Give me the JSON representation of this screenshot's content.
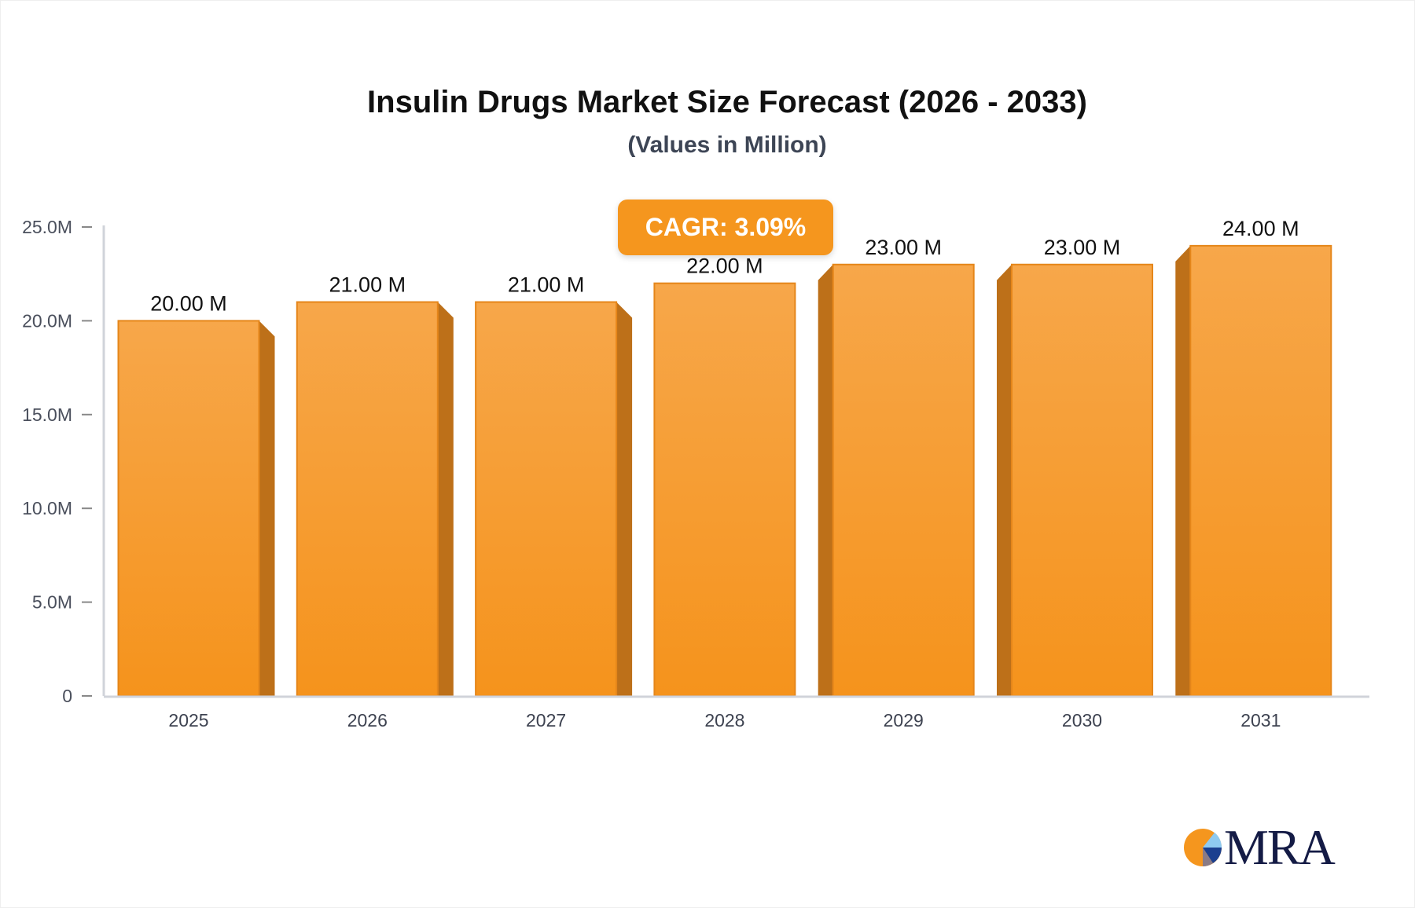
{
  "chart_data": {
    "type": "bar",
    "title": "Insulin Drugs Market Size Forecast (2026 - 2033)",
    "subtitle": "(Values in Million)",
    "categories": [
      "2025",
      "2026",
      "2027",
      "2028",
      "2029",
      "2030",
      "2031"
    ],
    "values": [
      20,
      21,
      21,
      22,
      23,
      23,
      24
    ],
    "data_labels": [
      "20.00 M",
      "21.00 M",
      "21.00 M",
      "22.00 M",
      "23.00 M",
      "23.00 M",
      "24.00 M"
    ],
    "yticks": [
      0,
      5,
      10,
      15,
      20,
      25
    ],
    "ytick_labels": [
      "0",
      "5.0M",
      "10.0M",
      "15.0M",
      "20.0M",
      "25.0M"
    ],
    "ylim": [
      0,
      25
    ],
    "xlabel": "",
    "ylabel": "",
    "grid": false,
    "bar_color": "#f5961e",
    "annotation": "CAGR: 3.09%"
  },
  "logo": {
    "text": "MRA"
  }
}
